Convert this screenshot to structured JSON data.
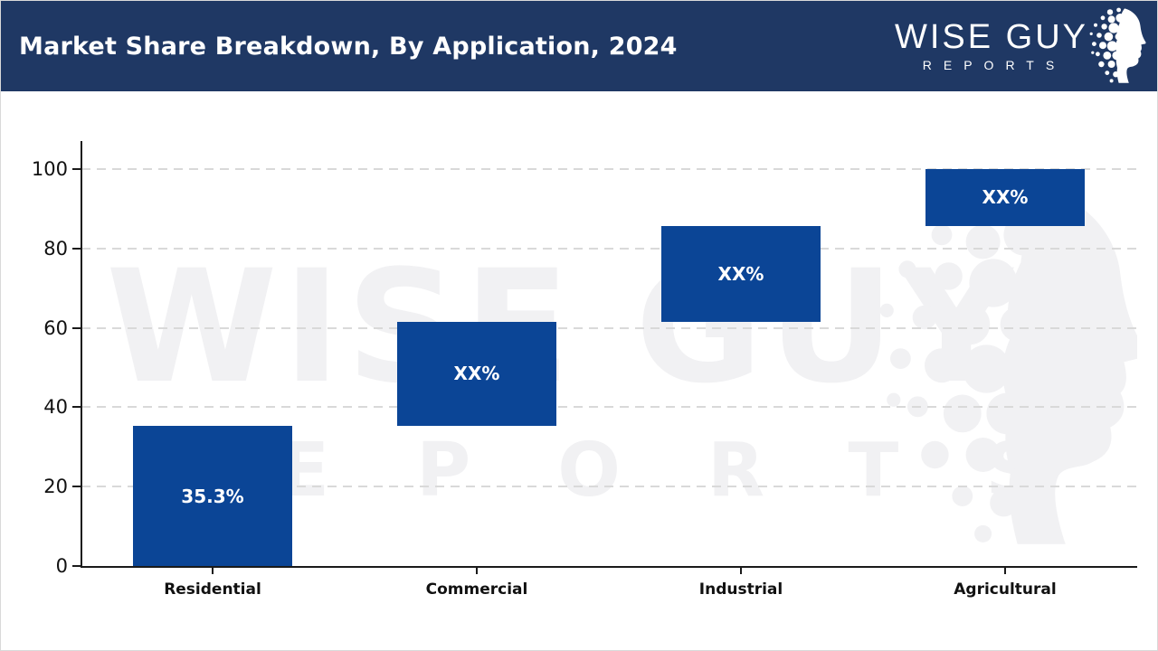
{
  "header": {
    "title": "Market Share Breakdown, By Application, 2024",
    "bg_color": "#1f3864",
    "logo": {
      "line1": "WISE GUY",
      "line2": "REPORTS"
    }
  },
  "watermark": {
    "line1": "WISE GUY",
    "line2": "REPORTS"
  },
  "chart_data": {
    "type": "bar",
    "subtype": "waterfall-floating-bars",
    "title": "Market Share Breakdown, By Application, 2024",
    "categories": [
      "Residential",
      "Commercial",
      "Industrial",
      "Agricultural"
    ],
    "bars": [
      {
        "category": "Residential",
        "start": 0,
        "end": 35.3,
        "label": "35.3%"
      },
      {
        "category": "Commercial",
        "start": 35.3,
        "end": 61.6,
        "label": "XX%"
      },
      {
        "category": "Industrial",
        "start": 61.6,
        "end": 85.7,
        "label": "XX%"
      },
      {
        "category": "Agricultural",
        "start": 85.7,
        "end": 100,
        "label": "XX%"
      }
    ],
    "xlabel": "",
    "ylabel": "",
    "ylim": [
      0,
      100
    ],
    "yticks": [
      0,
      20,
      40,
      60,
      80,
      100
    ],
    "grid": "horizontal-dashed",
    "legend": "none",
    "bar_color": "#0b4596",
    "bar_label_color": "#ffffff",
    "axis_color": "#1a1a1a"
  }
}
